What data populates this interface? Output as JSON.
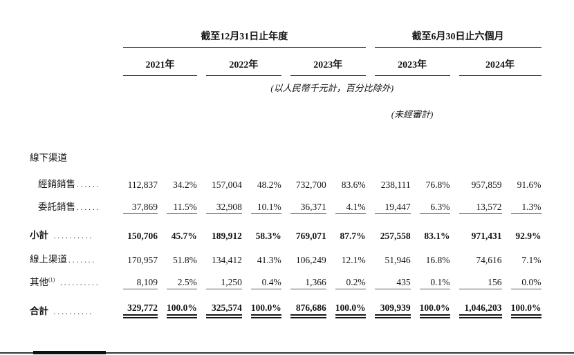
{
  "table": {
    "group_headers": [
      {
        "label": "截至12月31日止年度"
      },
      {
        "label": "截至6月30日止六個月"
      }
    ],
    "year_headers": [
      "2021年",
      "2022年",
      "2023年",
      "2023年",
      "2024年"
    ],
    "unit_note": "(以人民幣千元計，百分比除外)",
    "unaudited_note": "(未經審計)",
    "rows": [
      {
        "type": "section",
        "label": "線下渠道",
        "sup": "",
        "dots": "",
        "indent": false,
        "bold": false,
        "rule": "none",
        "values": []
      },
      {
        "type": "data",
        "label": "經銷銷售",
        "sup": "",
        "dots": "......",
        "indent": true,
        "bold": false,
        "rule": "none",
        "values": [
          "112,837",
          "34.2%",
          "157,004",
          "48.2%",
          "732,700",
          "83.6%",
          "238,111",
          "76.8%",
          "957,859",
          "91.6%"
        ]
      },
      {
        "type": "data",
        "label": "委託銷售",
        "sup": "",
        "dots": "......",
        "indent": true,
        "bold": false,
        "rule": "single",
        "values": [
          "37,869",
          "11.5%",
          "32,908",
          "10.1%",
          "36,371",
          "4.1%",
          "19,447",
          "6.3%",
          "13,572",
          "1.3%"
        ]
      },
      {
        "type": "data",
        "label": "小計",
        "sup": "",
        "dots": " ..........",
        "indent": false,
        "bold": true,
        "rule": "none",
        "values": [
          "150,706",
          "45.7%",
          "189,912",
          "58.3%",
          "769,071",
          "87.7%",
          "257,558",
          "83.1%",
          "971,431",
          "92.9%"
        ]
      },
      {
        "type": "data",
        "label": "線上渠道",
        "sup": "",
        "dots": ".......",
        "indent": false,
        "bold": false,
        "rule": "none",
        "values": [
          "170,957",
          "51.8%",
          "134,412",
          "41.3%",
          "106,249",
          "12.1%",
          "51,946",
          "16.8%",
          "74,616",
          "7.1%"
        ]
      },
      {
        "type": "data",
        "label": "其他",
        "sup": "(1)",
        "dots": " ..........",
        "indent": false,
        "bold": false,
        "rule": "single",
        "values": [
          "8,109",
          "2.5%",
          "1,250",
          "0.4%",
          "1,366",
          "0.2%",
          "435",
          "0.1%",
          "156",
          "0.0%"
        ]
      },
      {
        "type": "data",
        "label": "合計",
        "sup": "",
        "dots": " ..........",
        "indent": false,
        "bold": true,
        "rule": "double",
        "values": [
          "329,772",
          "100.0%",
          "325,574",
          "100.0%",
          "876,686",
          "100.0%",
          "309,939",
          "100.0%",
          "1,046,203",
          "100.0%"
        ]
      }
    ]
  }
}
